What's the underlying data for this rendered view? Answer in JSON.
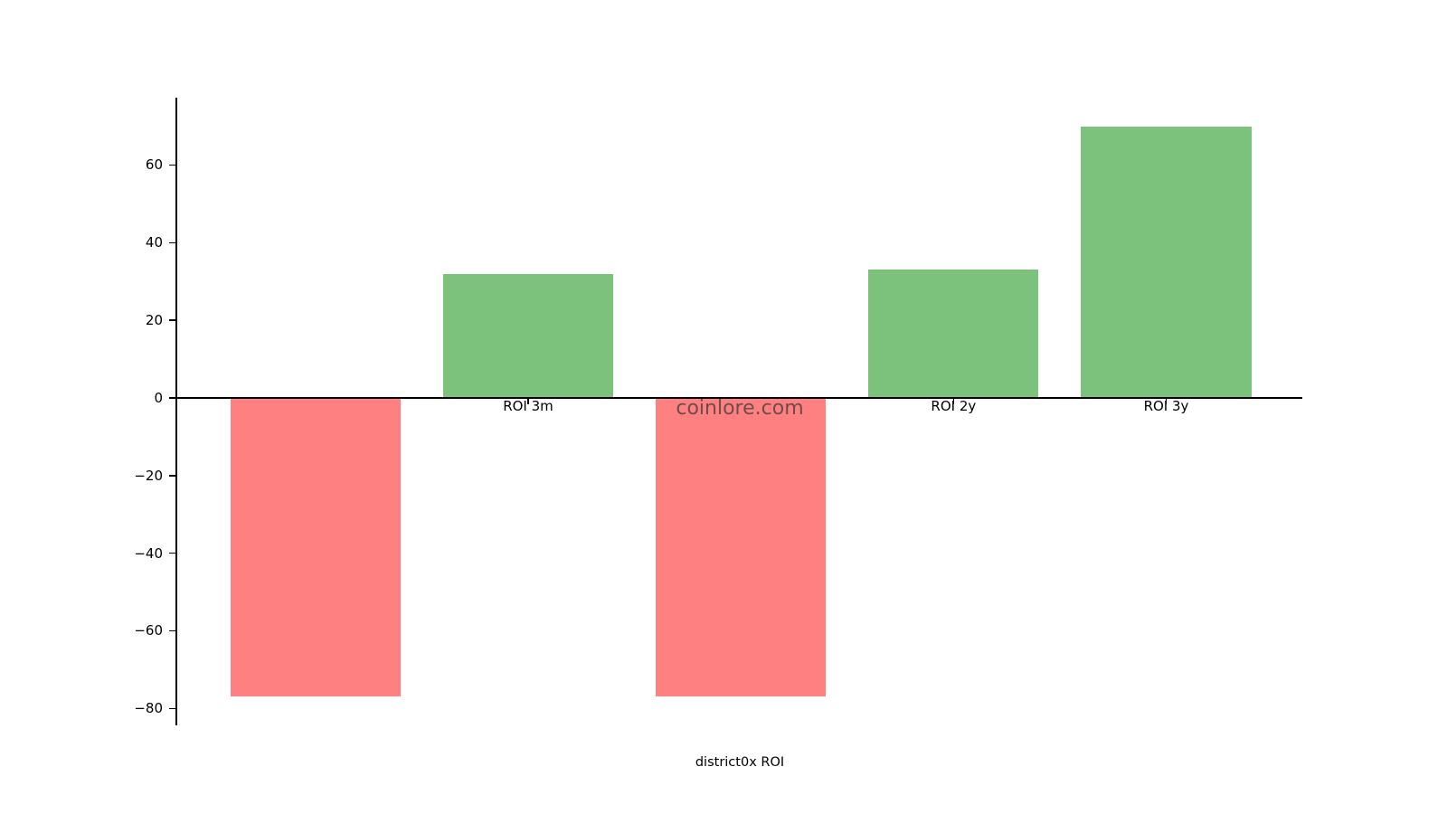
{
  "chart_data": {
    "type": "bar",
    "title": "district0x ROI",
    "xlabel": "",
    "ylabel": "",
    "categories": [
      "",
      "ROI 3m",
      "",
      "ROI 2y",
      "ROI 3y"
    ],
    "values": [
      -77,
      32,
      -77,
      33,
      70
    ],
    "positive_color": "#7cc17c",
    "negative_color": "#ff8080",
    "axis_color": "#000000",
    "text_color": "#000000",
    "grid": false,
    "legend": "none",
    "ylim": [
      -84.35,
      77.35
    ],
    "xlim": [
      -0.65,
      4.64
    ],
    "bar_width_units": 0.8,
    "yticks": [
      {
        "value": 60,
        "label": "60"
      },
      {
        "value": 40,
        "label": "40"
      },
      {
        "value": 20,
        "label": "20"
      },
      {
        "value": 0,
        "label": "0"
      },
      {
        "value": -20,
        "label": "−20"
      },
      {
        "value": -40,
        "label": "−40"
      },
      {
        "value": -60,
        "label": "−60"
      },
      {
        "value": -80,
        "label": "−80"
      }
    ]
  },
  "watermark": {
    "text": "coinlore.com",
    "color": "rgba(55,55,55,0.72)"
  }
}
